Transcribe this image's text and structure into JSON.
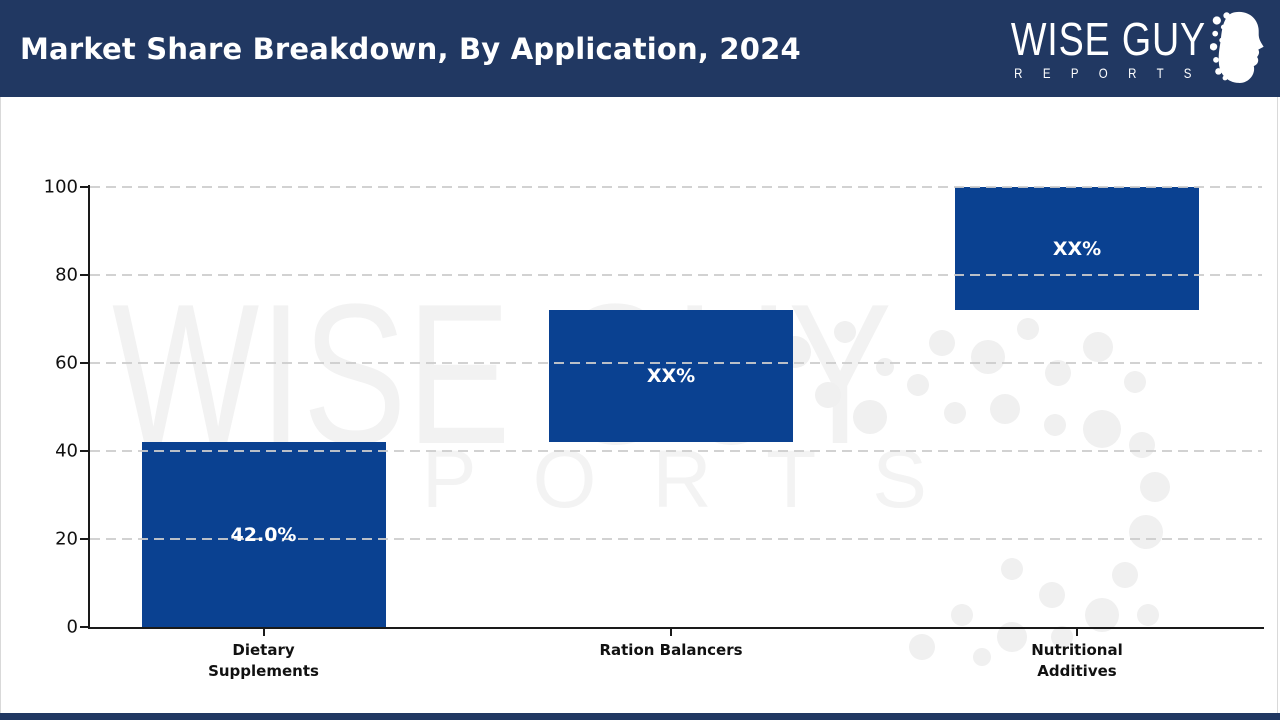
{
  "header": {
    "title": "Market Share Breakdown, By Application, 2024",
    "logo": {
      "line1": "WISE GUY",
      "line2": "R E P O R T S"
    }
  },
  "watermark": {
    "line1": "WISE GUY",
    "line2": "REPORTS"
  },
  "colors": {
    "header_navy": "#213862",
    "bar_blue": "#0a4191",
    "watermark_gray": "#f2f2f2",
    "grid_gray": "#d2d2d2"
  },
  "chart_data": {
    "type": "bar",
    "subtype": "waterfall-step",
    "title": "Market Share Breakdown, By Application, 2024",
    "categories": [
      "Dietary\nSupplements",
      "Ration Balancers",
      "Nutritional\nAdditives"
    ],
    "segments": [
      {
        "category": "Dietary Supplements",
        "start": 0,
        "end": 42,
        "label": "42.0%"
      },
      {
        "category": "Ration Balancers",
        "start": 42,
        "end": 72,
        "label": "XX%"
      },
      {
        "category": "Nutritional Additives",
        "start": 72,
        "end": 100,
        "label": "XX%"
      }
    ],
    "xlabel": "",
    "ylabel": "",
    "yticks": [
      0,
      20,
      40,
      60,
      80,
      100
    ],
    "ylim": [
      0,
      100
    ],
    "grid": "dashed-horizontal, drawn over bars",
    "legend": "none",
    "bar_color": "#0a4191",
    "bar_label_color": "#ffffff"
  }
}
